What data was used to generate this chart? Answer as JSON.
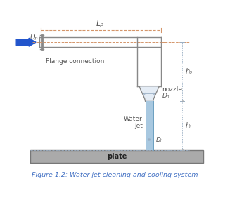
{
  "title": "Figure 1.2: Water jet cleaning and cooling system",
  "title_color": "#4472C4",
  "bg_color": "#ffffff",
  "pipe_color": "#888888",
  "arrow_color": "#2255CC",
  "dashed_orange": "#D4956A",
  "dashed_blue": "#9AAFC4",
  "label_color": "#555555",
  "Lp_label": "Lₚ",
  "Dp_label": "Dₚ",
  "flange_label": "Flange connection",
  "nozzle_label1": "nozzle",
  "nozzle_label2": "Dₙ",
  "waterjet_label1": "Water",
  "waterjet_label2": "jet",
  "Dj_label": "Dⱼ",
  "h1_label": "h₀",
  "h2_label": "hⱼ",
  "plate_label": "plate"
}
